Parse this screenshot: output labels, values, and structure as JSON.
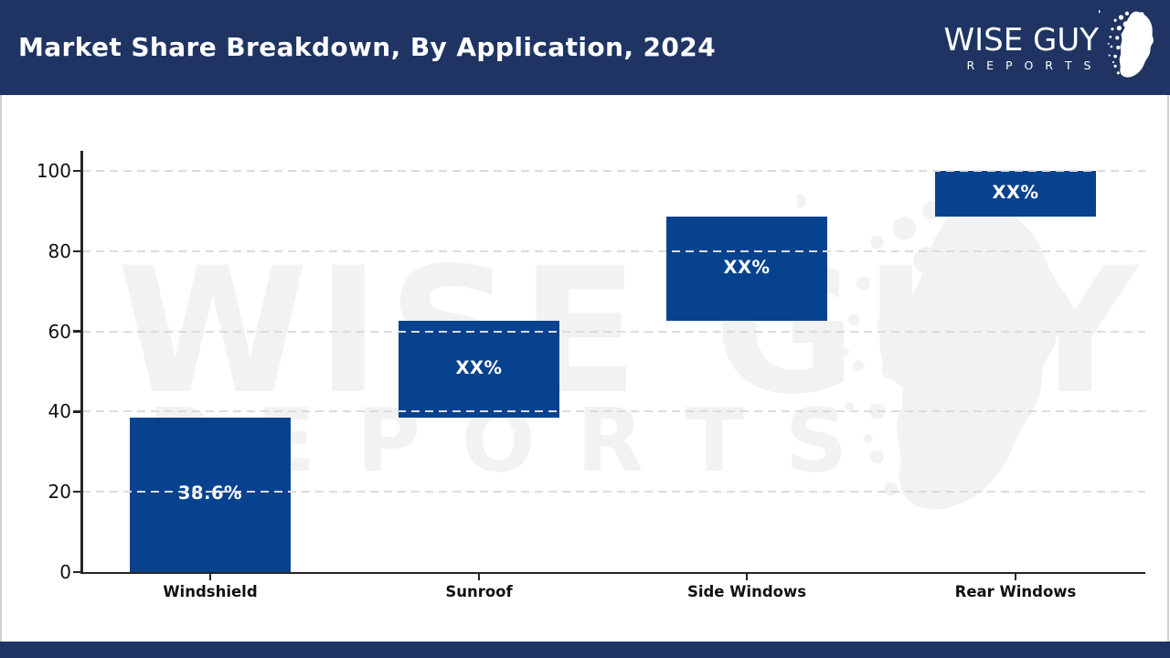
{
  "header": {
    "title": "Market Share Breakdown, By Application, 2024",
    "logo": {
      "name": "WISE GUY",
      "sub": "R E P O R T S"
    }
  },
  "watermark": {
    "name": "WISE GUY",
    "sub": "R E P O R T S"
  },
  "chart_data": {
    "type": "bar",
    "subtype": "waterfall",
    "title": "Market Share Breakdown, By Application, 2024",
    "categories": [
      "Windshield",
      "Sunroof",
      "Side Windows",
      "Rear Windows"
    ],
    "series": [
      {
        "name": "Market share (%)",
        "segments": [
          {
            "category": "Windshield",
            "start": 0,
            "end": 38.6,
            "label": "38.6%"
          },
          {
            "category": "Sunroof",
            "start": 38.6,
            "end": 62.6,
            "label": "XX%"
          },
          {
            "category": "Side Windows",
            "start": 62.6,
            "end": 88.6,
            "label": "XX%"
          },
          {
            "category": "Rear Windows",
            "start": 88.6,
            "end": 100,
            "label": "XX%"
          }
        ]
      }
    ],
    "xlabel": "",
    "ylabel": "",
    "yticks": [
      0,
      20,
      40,
      60,
      80,
      100
    ],
    "ylim": [
      0,
      105
    ],
    "grid": "horizontal-dashed",
    "legend": "none"
  },
  "colors": {
    "header_bg": "#1f3463",
    "footer_bg": "#1f3463",
    "bar": "#07428f",
    "bar_label": "#ffffff",
    "grid": "#dcdcdc",
    "axis": "#262626",
    "watermark": "#f2f2f2"
  }
}
